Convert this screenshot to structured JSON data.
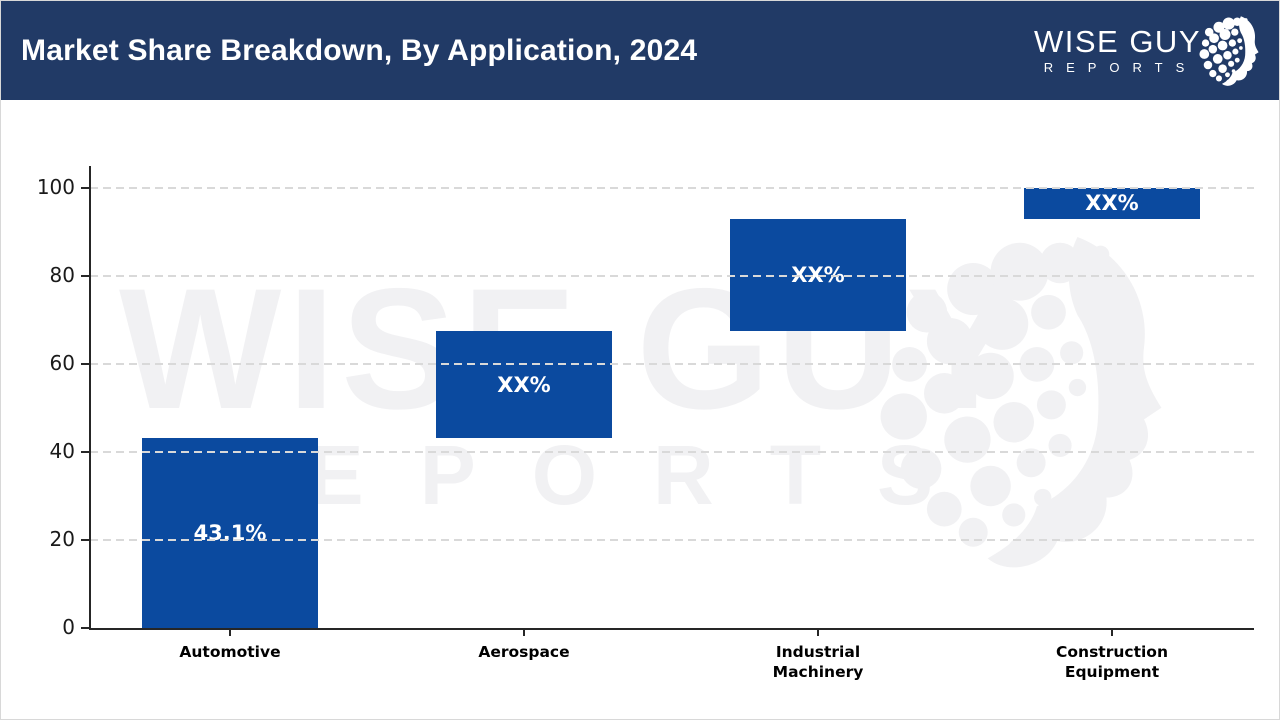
{
  "header": {
    "title": "Market Share Breakdown, By Application, 2024",
    "logo": {
      "line1": "WISE GUY",
      "line2": "REPORTS"
    }
  },
  "watermark": {
    "line1": "WISE GUY",
    "line2": "REPORTS"
  },
  "chart_data": {
    "type": "bar",
    "subtype": "waterfall",
    "title": "Market Share Breakdown, By Application, 2024",
    "categories": [
      "Automotive",
      "Aerospace",
      "Industrial Machinery",
      "Construction Equipment"
    ],
    "category_lines": [
      [
        "Automotive"
      ],
      [
        "Aerospace"
      ],
      [
        "Industrial",
        "Machinery"
      ],
      [
        "Construction",
        "Equipment"
      ]
    ],
    "segments": [
      {
        "category": "Automotive",
        "start": 0,
        "end": 43.1,
        "value": 43.1,
        "label": "43.1%"
      },
      {
        "category": "Aerospace",
        "start": 43.1,
        "end": 67.5,
        "value": 24.4,
        "label": "XX%"
      },
      {
        "category": "Industrial Machinery",
        "start": 67.5,
        "end": 93.0,
        "value": 25.5,
        "label": "XX%"
      },
      {
        "category": "Construction Equipment",
        "start": 93.0,
        "end": 100.0,
        "value": 7.0,
        "label": "XX%"
      }
    ],
    "y_ticks": [
      0,
      20,
      40,
      60,
      80,
      100
    ],
    "ylim": [
      0,
      100
    ],
    "xlabel": "",
    "ylabel": "",
    "grid": "horizontal-dashed",
    "legend": "none",
    "bar_color": "#0b4a9f"
  },
  "colors": {
    "header_bg": "#213a66",
    "bar": "#0b4a9f",
    "grid": "#d9d9d9",
    "axis": "#262626",
    "watermark": "#f1f1f3",
    "page_border": "#d8d8d8"
  }
}
